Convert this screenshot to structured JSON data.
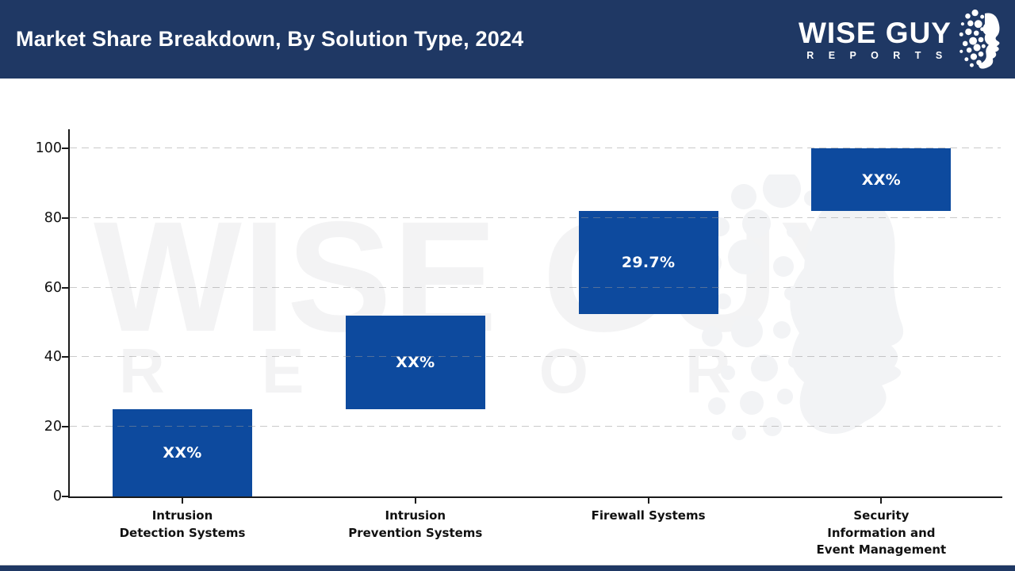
{
  "header": {
    "title": "Market Share Breakdown, By Solution Type, 2024",
    "bg_color": "#1f3864",
    "text_color": "#ffffff",
    "logo": {
      "wordmark": "WISE GUY",
      "subtext": "R E P O R T S"
    }
  },
  "watermark": {
    "line1": "WISE GUY",
    "line2": "R E P O R T S",
    "color": "#f3f3f4"
  },
  "chart_data": {
    "type": "bar",
    "subtype": "floating-waterfall",
    "title": "Market Share Breakdown, By Solution Type, 2024",
    "xlabel": "",
    "ylabel": "",
    "ylim": [
      0,
      105
    ],
    "yticks": [
      0,
      20,
      40,
      60,
      80,
      100
    ],
    "grid": "horizontal-dashed",
    "legend": "none",
    "bar_color": "#0d4a9e",
    "bar_label_color": "#ffffff",
    "categories": [
      "Intrusion Detection Systems",
      "Intrusion Prevention Systems",
      "Firewall Systems",
      "Security Information and Event Management"
    ],
    "category_lines": [
      [
        "Intrusion",
        "Detection Systems"
      ],
      [
        "Intrusion",
        "Prevention Systems"
      ],
      [
        "Firewall Systems"
      ],
      [
        "Security",
        "Information and",
        "Event Management"
      ]
    ],
    "segments": [
      {
        "category": "Intrusion Detection Systems",
        "start": 0,
        "end": 25,
        "label": "XX%"
      },
      {
        "category": "Intrusion Prevention Systems",
        "start": 25,
        "end": 52,
        "label": "XX%"
      },
      {
        "category": "Firewall Systems",
        "start": 52.3,
        "end": 82,
        "label": "29.7%"
      },
      {
        "category": "Security Information and Event Management",
        "start": 82,
        "end": 100,
        "label": "XX%"
      }
    ]
  }
}
